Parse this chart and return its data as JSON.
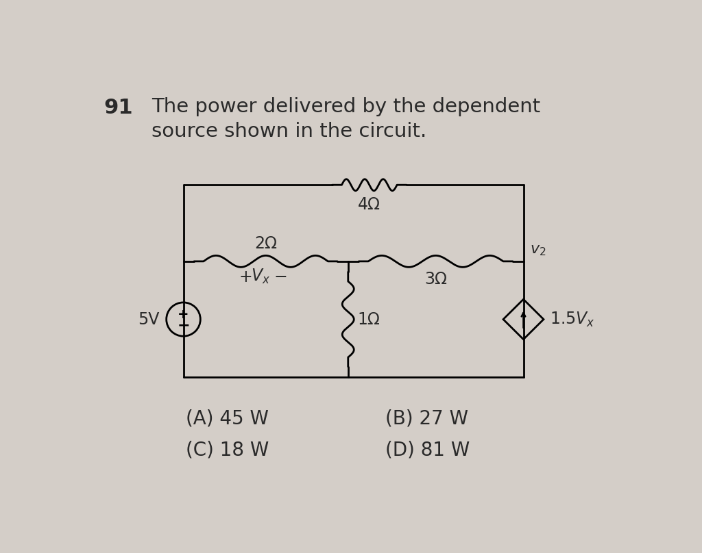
{
  "bg_color": "#d4cec8",
  "text_color": "#2a2a2a",
  "choices": [
    "(A) 45 W",
    "(B) 27 W",
    "(C) 18 W",
    "(D) 81 W"
  ],
  "title_num": "91",
  "title_line1": "The power delivered by the dependent",
  "title_line2": "source shown in the circuit.",
  "labels": {
    "r4": "4Ω",
    "r2": "2Ω",
    "r3": "3Ω",
    "r1": "1Ω",
    "vs": "5V",
    "ds": "1.5V",
    "ds_sub": "x",
    "vx_plus": "+",
    "vx_v": "V",
    "vx_sub": "x",
    "vx_minus": "−",
    "v2": "v₂"
  }
}
